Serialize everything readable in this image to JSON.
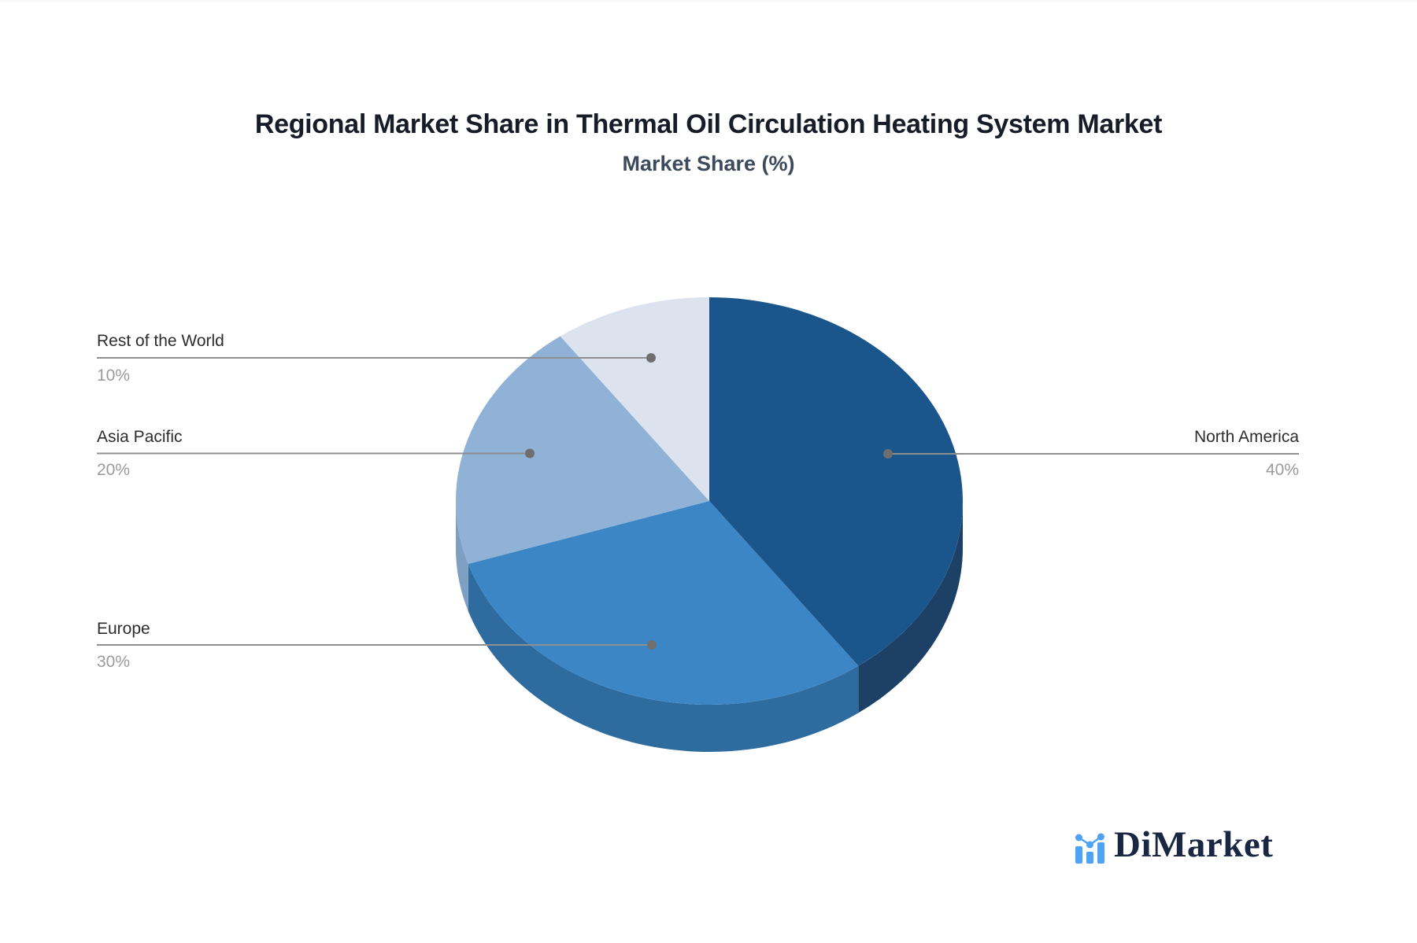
{
  "header": {
    "title": "Regional Market Share in Thermal Oil Circulation Heating System Market",
    "subtitle": "Market Share (%)"
  },
  "chart_data": {
    "type": "pie",
    "style": "3d",
    "title": "Regional Market Share in Thermal Oil Circulation Heating System Market",
    "subtitle": "Market Share (%)",
    "unit": "%",
    "direction": "clockwise",
    "start_angle_deg": 0,
    "legend_position": "leader-line-labels",
    "slices": [
      {
        "label": "North America",
        "value": 40,
        "display": "40%",
        "color": "#1A568C",
        "side_color": "#1C4066"
      },
      {
        "label": "Europe",
        "value": 30,
        "display": "30%",
        "color": "#3C86C6",
        "side_color": "#2E6CA0"
      },
      {
        "label": "Asia Pacific",
        "value": 20,
        "display": "20%",
        "color": "#8FB2D6",
        "side_color": "#7F9FC2"
      },
      {
        "label": "Rest of the World",
        "value": 10,
        "display": "10%",
        "color": "#DDE3EE",
        "side_color": "#C2CBD9"
      }
    ],
    "leader_line_color": "#8F8F8F",
    "leader_dot_color": "#6F6F6F",
    "label_color": "#2D2D2D",
    "value_color": "#9B9B9B"
  },
  "logo": {
    "text": "DiMarket",
    "icon": "bar-chart-icon",
    "text_color": "#1A2742",
    "icon_color": "#4FA3F4"
  }
}
